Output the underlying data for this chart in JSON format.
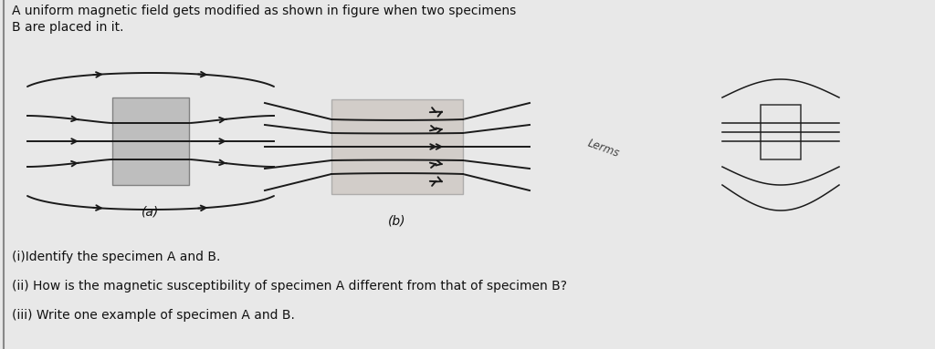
{
  "bg_color": "#e8e8e8",
  "text_color": "#111111",
  "title_line1": "A uniform magnetic field gets modified as shown in figure when two specimens",
  "title_line2": "B are placed in it.",
  "label_a": "(a)",
  "label_b": "(b)",
  "question1": "(i)Identify the specimen A and B.",
  "question2": "(ii) How is the magnetic susceptibility of specimen A different from that of specimen B?",
  "question3": "(iii) Write one example of specimen A and B.",
  "rect_a_color": "#b0b0b0",
  "rect_b_color": "#c0b8b0",
  "line_color": "#1a1a1a",
  "border_color": "#888888"
}
